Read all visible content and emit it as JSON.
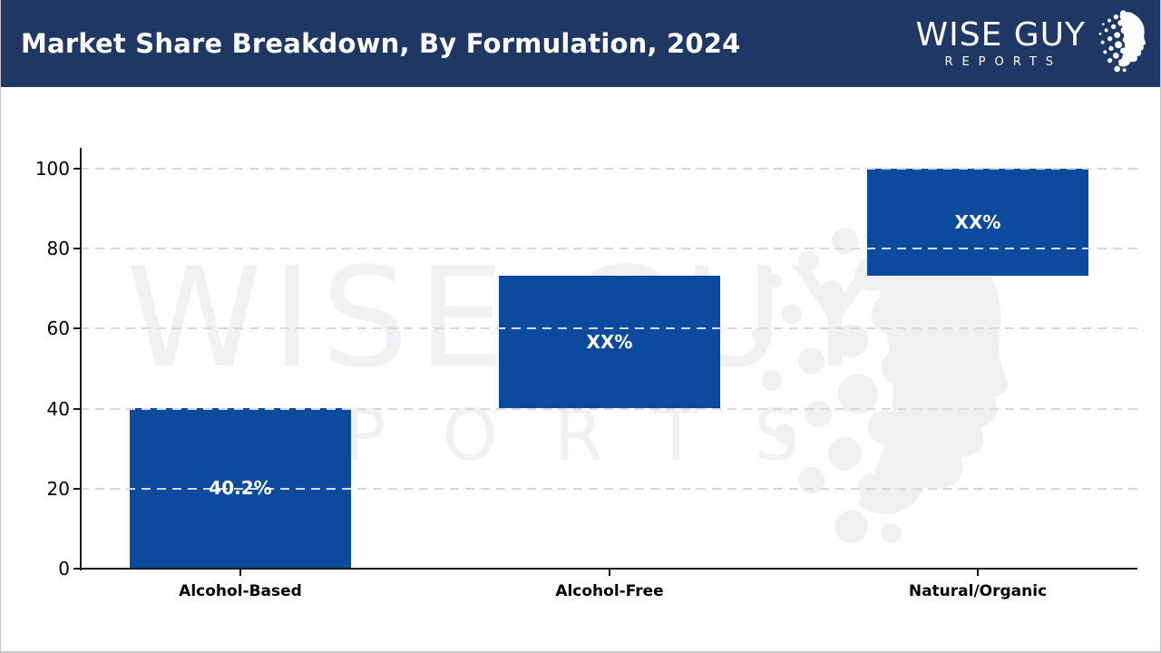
{
  "header": {
    "title": "Market Share Breakdown, By Formulation, 2024",
    "logo": {
      "line1": "WISE GUY",
      "line2": "REPORTS"
    }
  },
  "watermark": {
    "line1": "WISE GUY",
    "line2": "REPORTS"
  },
  "colors": {
    "header_bg": "#1f3765",
    "bar": "#0c4a9e",
    "grid": "#d9d9d9",
    "axis": "#1a1a1a",
    "watermark": "#f1f1f3",
    "value_label": "#ffffff"
  },
  "chart_data": {
    "type": "bar",
    "subtype": "waterfall-segments",
    "title": "Market Share Breakdown, By Formulation, 2024",
    "categories": [
      "Alcohol-Based",
      "Alcohol-Free",
      "Natural/Organic"
    ],
    "segments": [
      {
        "category": "Alcohol-Based",
        "start": 0,
        "end": 40.2,
        "label": "40.2%"
      },
      {
        "category": "Alcohol-Free",
        "start": 40.2,
        "end": 73.3,
        "label": "XX%"
      },
      {
        "category": "Natural/Organic",
        "start": 73.3,
        "end": 100,
        "label": "XX%"
      }
    ],
    "xlabel": "",
    "ylabel": "",
    "ylim": [
      0,
      100
    ],
    "yticks": [
      0,
      20,
      40,
      60,
      80,
      100
    ],
    "grid": {
      "axis": "y",
      "style": "dashed"
    },
    "legend": null
  }
}
